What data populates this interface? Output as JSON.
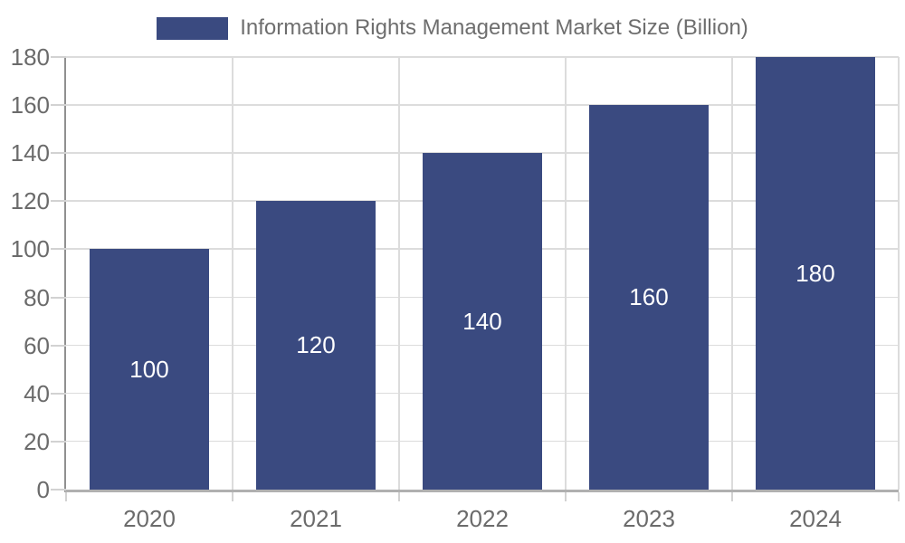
{
  "legend": {
    "label": "Information Rights Management Market Size (Billion)"
  },
  "chart_data": {
    "type": "bar",
    "title": "Information Rights Management Market Size (Billion)",
    "categories": [
      "2020",
      "2021",
      "2022",
      "2023",
      "2024"
    ],
    "values": [
      100,
      120,
      140,
      160,
      180
    ],
    "value_labels": [
      "100",
      "120",
      "140",
      "160",
      "180"
    ],
    "xlabel": "",
    "ylabel": "",
    "ylim": [
      0,
      180
    ],
    "yticks": [
      0,
      20,
      40,
      60,
      80,
      100,
      120,
      140,
      160,
      180
    ],
    "grid": true,
    "legend_position": "top-center",
    "value_label_position": "inside-center"
  },
  "colors": {
    "bar": "#3A4A80",
    "grid": "#dcdcdc",
    "y_axis_line": "#909090",
    "x_axis_line": "#b0b0b0",
    "tick_mark": "#d2d2d2",
    "tick_text": "#6b6b6b",
    "legend_text": "#6e6e6e",
    "value_label": "#ffffff",
    "background": "#ffffff"
  }
}
